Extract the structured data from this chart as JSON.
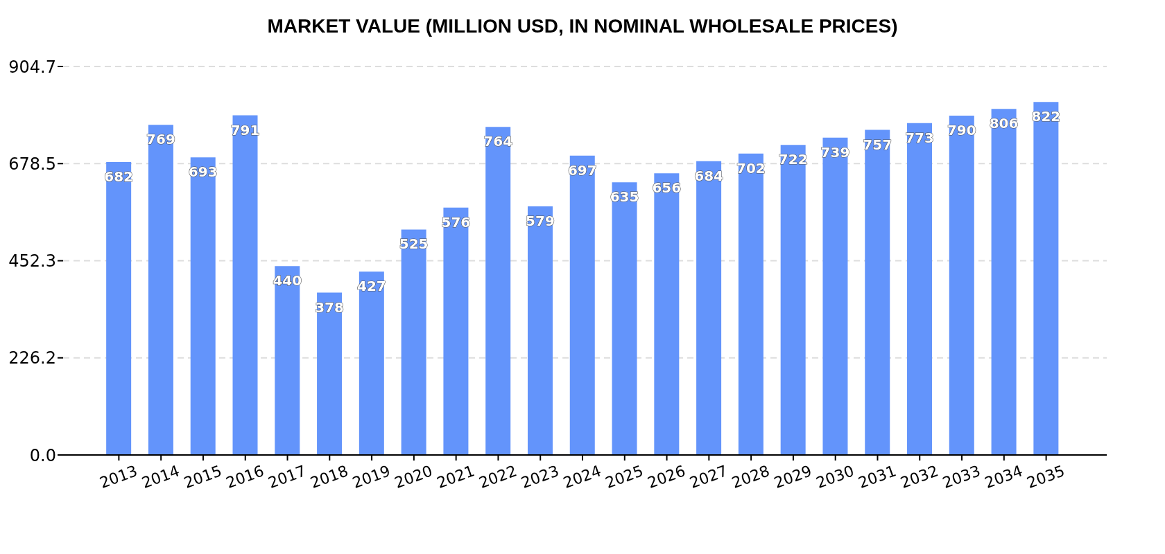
{
  "chart_data": {
    "type": "bar",
    "title": "MARKET VALUE (MILLION USD, IN NOMINAL WHOLESALE PRICES)",
    "categories": [
      "2013",
      "2014",
      "2015",
      "2016",
      "2017",
      "2018",
      "2019",
      "2020",
      "2021",
      "2022",
      "2023",
      "2024",
      "2025",
      "2026",
      "2027",
      "2028",
      "2029",
      "2030",
      "2031",
      "2032",
      "2033",
      "2034",
      "2035"
    ],
    "values": [
      682,
      769,
      693,
      791,
      440,
      378,
      427,
      525,
      576,
      764,
      579,
      697,
      635,
      656,
      684,
      702,
      722,
      739,
      757,
      773,
      790,
      806,
      822
    ],
    "color": "#6394fb",
    "ylim": [
      0,
      904.7
    ],
    "yticks": [
      {
        "value": 0,
        "label": "0.0"
      },
      226.2,
      452.3,
      678.5,
      904.7
    ],
    "grid": "y",
    "data_labels": true
  }
}
